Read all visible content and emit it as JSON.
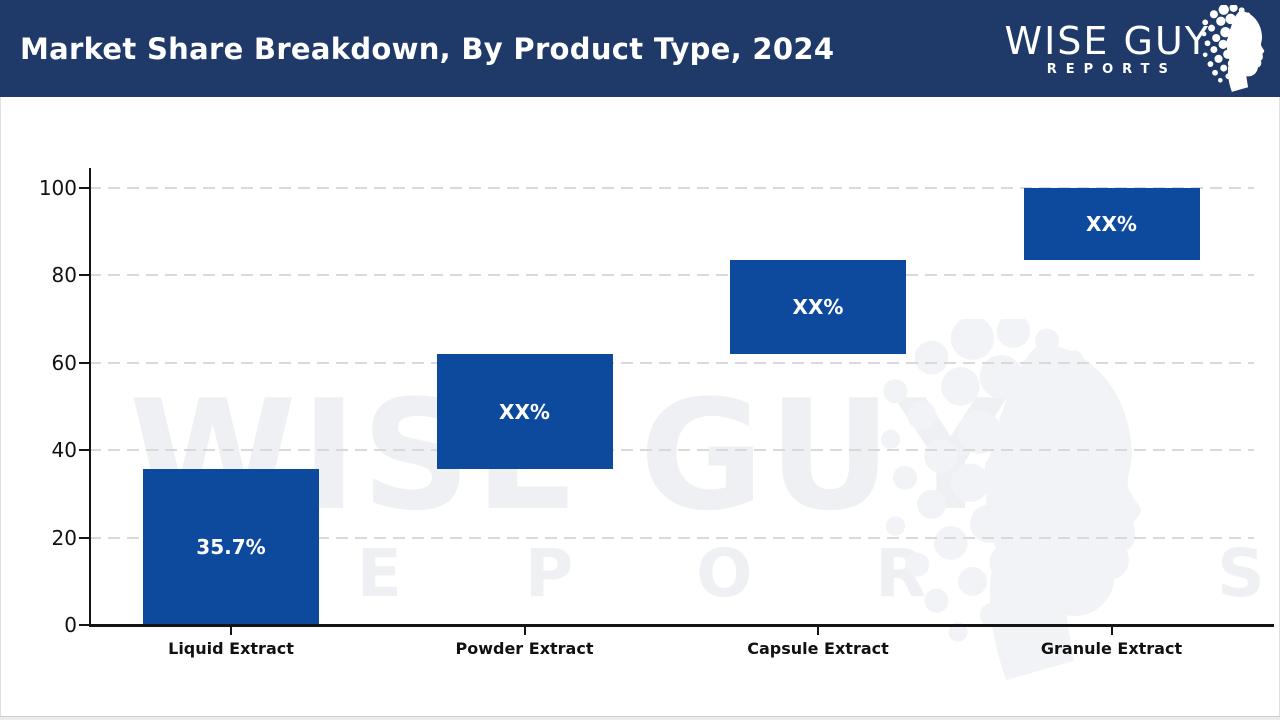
{
  "header": {
    "title": "Market Share Breakdown, By Product Type, 2024",
    "logo": {
      "line1": "WISE GUY",
      "line2": "REPORTS"
    }
  },
  "watermark": {
    "line1": "WISE GUY",
    "line2": "R E P O R T S"
  },
  "chart_data": {
    "type": "bar",
    "subtype": "waterfall",
    "title": "Market Share Breakdown, By Product Type, 2024",
    "categories": [
      "Liquid Extract",
      "Powder Extract",
      "Capsule Extract",
      "Granule Extract"
    ],
    "bars": [
      {
        "category": "Liquid Extract",
        "start": 0,
        "end": 35.7,
        "label": "35.7%"
      },
      {
        "category": "Powder Extract",
        "start": 35.7,
        "end": 62.0,
        "label": "XX%"
      },
      {
        "category": "Capsule Extract",
        "start": 62.0,
        "end": 83.5,
        "label": "XX%"
      },
      {
        "category": "Granule Extract",
        "start": 83.5,
        "end": 100.0,
        "label": "XX%"
      }
    ],
    "values_displayed": [
      "35.7%",
      "XX%",
      "XX%",
      "XX%"
    ],
    "approx_segment_values": [
      35.7,
      26.3,
      21.5,
      16.5
    ],
    "xlabel": "",
    "ylabel": "",
    "ylim": [
      0,
      100
    ],
    "yticks": [
      0,
      20,
      40,
      60,
      80,
      100
    ],
    "grid": "horizontal-dashed",
    "legend": "none",
    "bar_color": "#0d4a9e",
    "bar_label_color": "#ffffff",
    "axis_color": "#151515",
    "header_color": "#1f3a68"
  }
}
